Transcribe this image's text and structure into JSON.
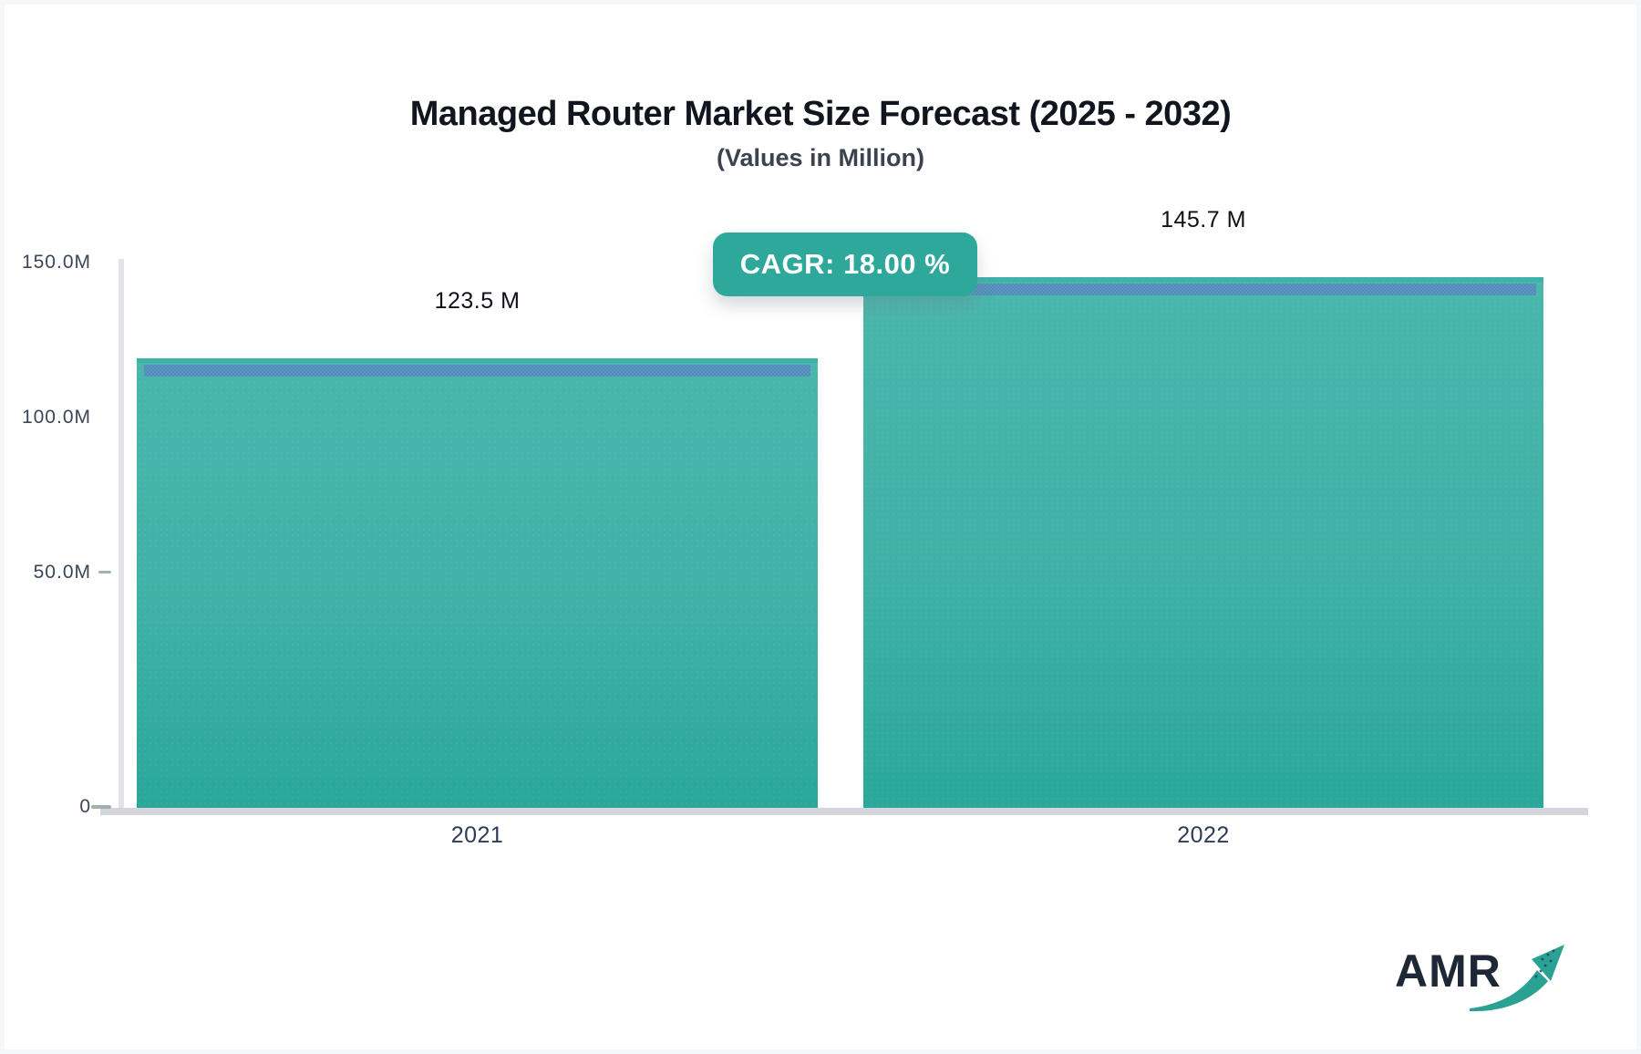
{
  "chart_data": {
    "type": "bar",
    "title": "Managed Router Market Size Forecast (2025 - 2032)",
    "subtitle": "(Values in Million)",
    "units": "Million (M)",
    "categories": [
      "2021",
      "2022"
    ],
    "values": [
      123.5,
      145.7
    ],
    "value_labels": [
      "123.5 M",
      "145.7 M"
    ],
    "cagr_annotation": "CAGR: 18.00 %",
    "ylim": [
      0,
      150
    ],
    "yticks": [
      {
        "value": 150,
        "label": "150.0M"
      },
      {
        "value": 100,
        "label": "100.0M"
      },
      {
        "value": 50,
        "label": "50.0M"
      },
      {
        "value": 0,
        "label": "0"
      }
    ],
    "grid": false,
    "legend": false,
    "bar_colors": {
      "top": "#4ab6ac",
      "bottom": "#2aa79a",
      "top_stripe": "#5d84c2"
    }
  },
  "logo": {
    "text": "AMR",
    "arrow_icon": "growth-arrow"
  },
  "colors": {
    "bar_top": "#4ab6ac",
    "bar_bottom": "#2aa79a",
    "bar_edge": "#3db2a7",
    "stripe_dot": "#5d84c2",
    "badge_bg": "#2ea89b",
    "badge_text": "#ffffff",
    "axis_line": "#e3e4e8",
    "baseline": "#d3d5db",
    "tick_text": "#3b4656",
    "xlabel_text": "#2c3c59",
    "value_text": "#0d1118",
    "title_text": "#10151e",
    "subtitle_text": "#3c434f",
    "logo_text": "#1d2735",
    "logo_arrow": "#2aa193"
  }
}
